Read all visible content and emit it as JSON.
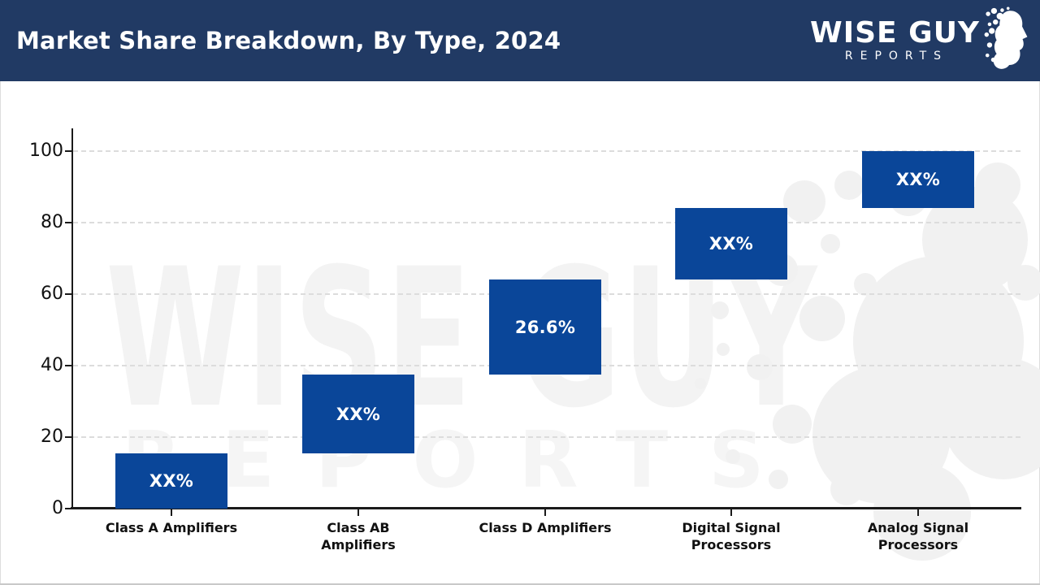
{
  "header": {
    "title": "Market Share Breakdown, By Type, 2024",
    "logo": {
      "line1": "WISE GUY",
      "line2": "REPORTS"
    }
  },
  "watermark": {
    "line1": "WISE GUY",
    "line2": "REPORTS"
  },
  "chart_data": {
    "type": "bar",
    "variant": "floating_segment_waterfall",
    "title": "Market Share Breakdown, By Type, 2024",
    "categories": [
      "Class A Amplifiers",
      "Class AB Amplifiers",
      "Class D Amplifiers",
      "Digital Signal Processors",
      "Analog Signal Processors"
    ],
    "category_label_lines": [
      [
        "Class A Amplifiers"
      ],
      [
        "Class AB",
        "Amplifiers"
      ],
      [
        "Class D Amplifiers"
      ],
      [
        "Digital Signal",
        "Processors"
      ],
      [
        "Analog Signal",
        "Processors"
      ]
    ],
    "bars": [
      {
        "category": "Class A Amplifiers",
        "start": 0,
        "end": 15.5,
        "value": 15.5,
        "label": "XX%"
      },
      {
        "category": "Class AB Amplifiers",
        "start": 15.5,
        "end": 37.5,
        "value": 22.0,
        "label": "XX%"
      },
      {
        "category": "Class D Amplifiers",
        "start": 37.5,
        "end": 64.1,
        "value": 26.6,
        "label": "26.6%"
      },
      {
        "category": "Digital Signal Processors",
        "start": 64.1,
        "end": 84.0,
        "value": 19.9,
        "label": "XX%"
      },
      {
        "category": "Analog Signal Processors",
        "start": 84.0,
        "end": 100.0,
        "value": 16.0,
        "label": "XX%"
      }
    ],
    "xlabel": "",
    "ylabel": "",
    "yticks": [
      0,
      20,
      40,
      60,
      80,
      100
    ],
    "ylim": [
      0,
      105
    ],
    "grid": {
      "horizontal_dashed": true,
      "color": "#dcdcdc"
    },
    "legend": null,
    "colors": {
      "bar": "#0a4699",
      "bar_label": "#ffffff",
      "axis": "#1a1a1a",
      "tick_label": "#111111"
    }
  },
  "colors": {
    "header_bg": "#213a64",
    "page_bg": "#ffffff",
    "watermark": "#f2f2f2",
    "border": "#c9c9c9"
  }
}
